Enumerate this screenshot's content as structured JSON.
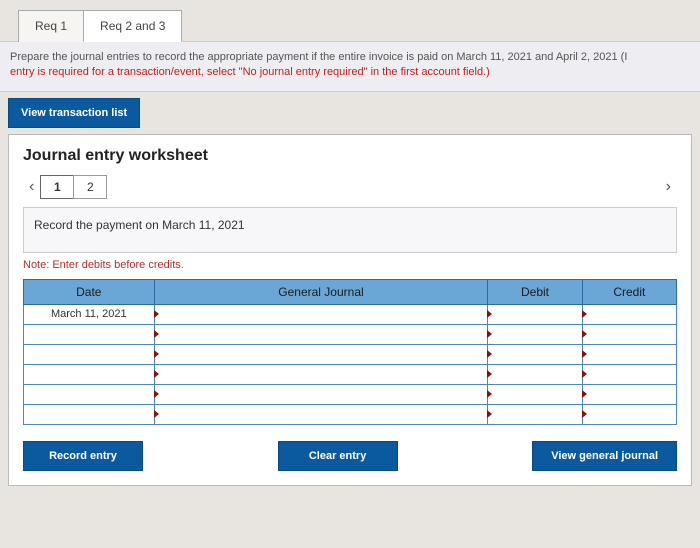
{
  "tabs": {
    "req1": "Req 1",
    "req23": "Req 2 and 3"
  },
  "instruction": {
    "text": "Prepare the journal entries to record the appropriate payment if the entire invoice is paid on March 11, 2021 and April 2, 2021 (I",
    "hint": "entry is required for a transaction/event, select \"No journal entry required\" in the first account field.)"
  },
  "buttons": {
    "view_transaction_list": "View transaction list",
    "record_entry": "Record entry",
    "clear_entry": "Clear entry",
    "view_general_journal": "View general journal"
  },
  "worksheet": {
    "title": "Journal entry worksheet",
    "pager": {
      "p1": "1",
      "p2": "2"
    },
    "record_instruction": "Record the payment on March 11, 2021",
    "note": "Note: Enter debits before credits.",
    "headers": {
      "date": "Date",
      "general_journal": "General Journal",
      "debit": "Debit",
      "credit": "Credit"
    },
    "rows": [
      {
        "date": "March 11, 2021",
        "gj": "",
        "debit": "",
        "credit": ""
      },
      {
        "date": "",
        "gj": "",
        "debit": "",
        "credit": ""
      },
      {
        "date": "",
        "gj": "",
        "debit": "",
        "credit": ""
      },
      {
        "date": "",
        "gj": "",
        "debit": "",
        "credit": ""
      },
      {
        "date": "",
        "gj": "",
        "debit": "",
        "credit": ""
      },
      {
        "date": "",
        "gj": "",
        "debit": "",
        "credit": ""
      }
    ]
  }
}
